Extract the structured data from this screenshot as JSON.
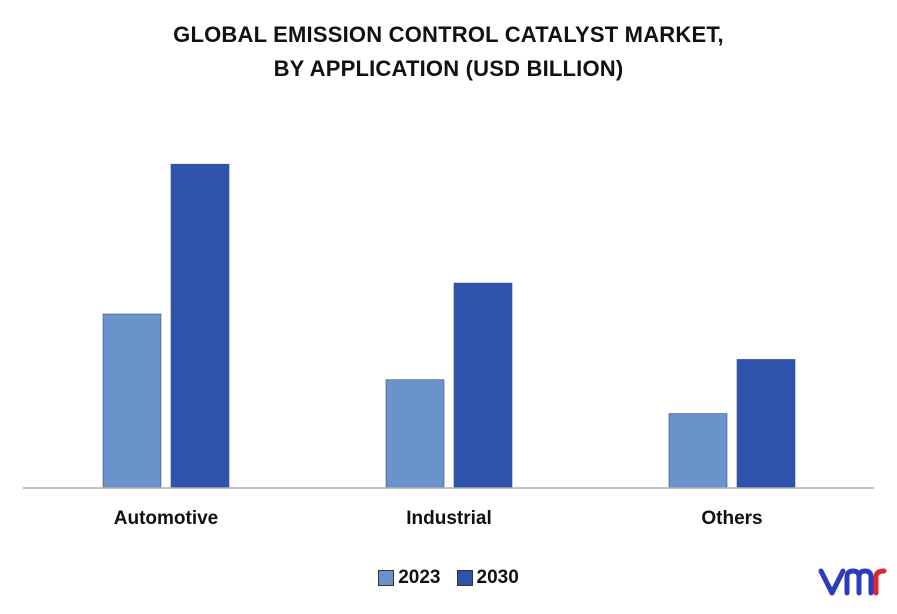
{
  "chart_data": {
    "type": "bar",
    "title": "GLOBAL EMISSION CONTROL CATALYST MARKET,",
    "subtitle": "BY APPLICATION (USD BILLION)",
    "categories": [
      "Automotive",
      "Industrial",
      "Others"
    ],
    "series": [
      {
        "name": "2023",
        "values": [
          18.0,
          11.2,
          7.7
        ],
        "color": "#6a93cb"
      },
      {
        "name": "2030",
        "values": [
          33.5,
          21.2,
          13.3
        ],
        "color": "#2e53ad"
      }
    ],
    "xlabel": "",
    "ylabel": "",
    "ylim": [
      0,
      36
    ],
    "grid": false,
    "legend_position": "bottom"
  },
  "logo": {
    "name": "vmr-logo",
    "text": "vmr",
    "color": "#2d3bbf"
  }
}
